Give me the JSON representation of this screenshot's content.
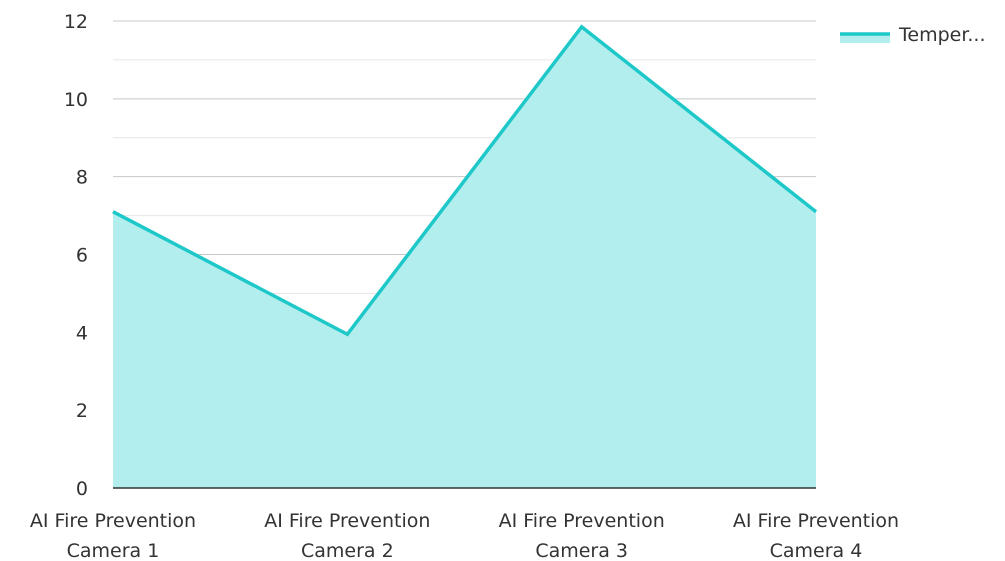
{
  "chart_data": {
    "type": "area",
    "categories": [
      [
        "AI Fire Prevention",
        "Camera 1"
      ],
      [
        "AI Fire Prevention",
        "Camera 2"
      ],
      [
        "AI Fire Prevention",
        "Camera 3"
      ],
      [
        "AI Fire Prevention",
        "Camera 4"
      ]
    ],
    "series": [
      {
        "name": "Temper...",
        "values": [
          7.1,
          3.95,
          11.85,
          7.1
        ]
      }
    ],
    "yticks": [
      "0",
      "2",
      "4",
      "6",
      "8",
      "10",
      "12"
    ],
    "ylim": [
      0,
      12
    ],
    "minor_grid_step": 1,
    "grid": true,
    "legend_position": "top-right",
    "title": "",
    "xlabel": "",
    "ylabel": "",
    "colors": {
      "line": "#1ec8c8",
      "fill": "#b2eeee",
      "grid_major": "#c8c8c8",
      "grid_minor": "#e6e6e6",
      "axis": "#333333"
    }
  }
}
